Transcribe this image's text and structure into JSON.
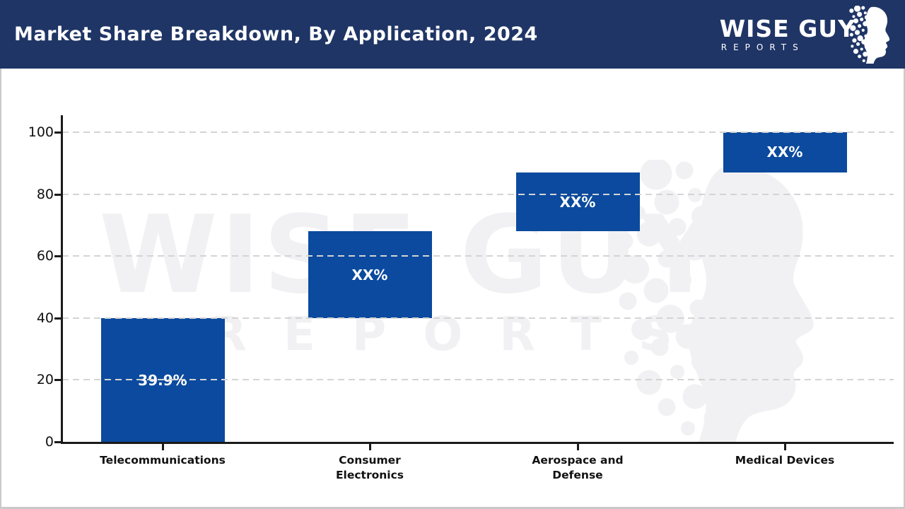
{
  "header": {
    "title": "Market Share Breakdown, By Application, 2024",
    "logo": {
      "line1": "WISE GUY",
      "line2": "REPORTS"
    }
  },
  "watermark": {
    "line1": "WISE GUY",
    "line2": "REPORTS"
  },
  "chart_data": {
    "type": "bar",
    "subtype": "waterfall",
    "title": "Market Share Breakdown, By Application, 2024",
    "xlabel": "",
    "ylabel": "",
    "ylim": [
      0,
      105
    ],
    "yticks": [
      0,
      20,
      40,
      60,
      80,
      100
    ],
    "grid": "horizontal-dashed-over-bars",
    "legend": "none",
    "bar_color": "#0b4a9e",
    "categories": [
      "Telecommunications",
      "Consumer Electronics",
      "Aerospace and Defense",
      "Medical Devices"
    ],
    "category_label_lines": [
      [
        "Telecommunications"
      ],
      [
        "Consumer",
        "Electronics"
      ],
      [
        "Aerospace and",
        "Defense"
      ],
      [
        "Medical Devices"
      ]
    ],
    "segments": [
      {
        "category": "Telecommunications",
        "from": 0,
        "to": 39.9,
        "value": 39.9,
        "label": "39.9%"
      },
      {
        "category": "Consumer Electronics",
        "from": 39.9,
        "to": 68,
        "value": 28.1,
        "label": "XX%"
      },
      {
        "category": "Aerospace and Defense",
        "from": 68,
        "to": 87,
        "value": 19,
        "label": "XX%"
      },
      {
        "category": "Medical Devices",
        "from": 87,
        "to": 100,
        "value": 13,
        "label": "XX%"
      }
    ]
  },
  "colors": {
    "header_bg": "#1f3566",
    "bar_blue": "#0b4a9e",
    "gridline_gray": "#d4d4d4",
    "axis_black": "#1a1a1a",
    "watermark_gray": "#f1f1f4",
    "frame_border_gray": "#c9c9c9"
  }
}
